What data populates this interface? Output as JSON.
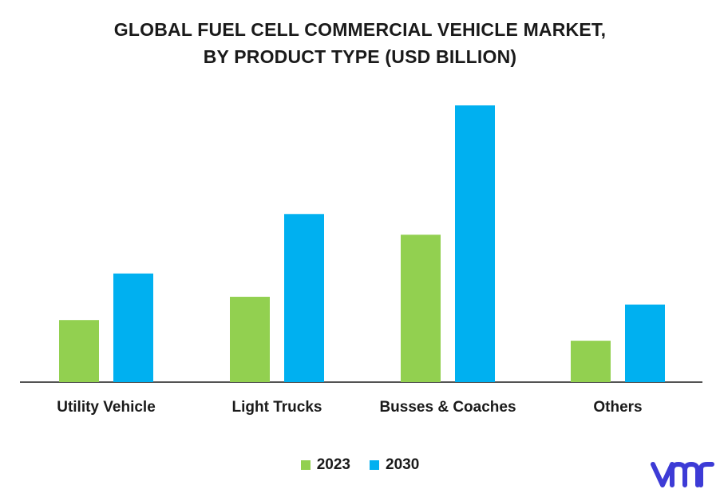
{
  "chart_data": {
    "type": "bar",
    "title": "GLOBAL FUEL CELL COMMERCIAL VEHICLE MARKET, BY PRODUCT TYPE (USD BILLION)",
    "title_lines": [
      "GLOBAL FUEL CELL COMMERCIAL VEHICLE MARKET,",
      "BY PRODUCT TYPE (USD BILLION)"
    ],
    "categories": [
      "Utility Vehicle",
      "Light Trucks",
      "Busses & Coaches",
      "Others"
    ],
    "series": [
      {
        "name": "2023",
        "color": "#92d050",
        "values": [
          2.4,
          3.3,
          5.7,
          1.6
        ]
      },
      {
        "name": "2030",
        "color": "#00b0f0",
        "values": [
          4.2,
          6.5,
          10.7,
          3.0
        ]
      }
    ],
    "xlabel": "",
    "ylabel": "",
    "ylim": [
      0,
      12
    ],
    "grid": false,
    "legend_position": "bottom-center"
  },
  "branding": {
    "logo_name": "vmr",
    "logo_color": "#3d3bd6"
  }
}
